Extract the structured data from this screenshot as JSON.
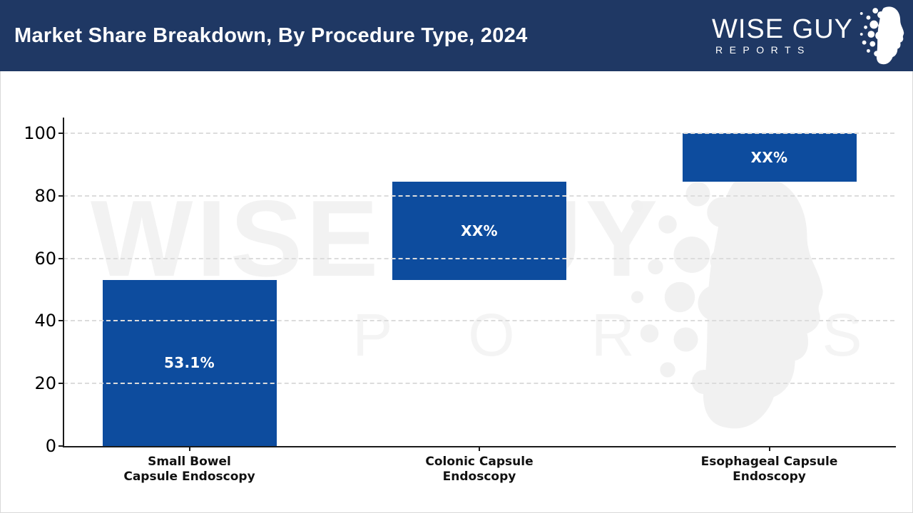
{
  "header": {
    "title": "Market Share Breakdown, By Procedure Type, 2024",
    "logo": {
      "line1": "WISE GUY",
      "line2": "REPORTS"
    }
  },
  "icons": {
    "logo_head": "wiseguy-head-icon",
    "watermark_head": "wiseguy-head-watermark-icon"
  },
  "watermark": {
    "line1": "WISE GUY",
    "line2": "R E P O R T S"
  },
  "colors": {
    "header_bg": "#1f3864",
    "bar_fill": "#0d4c9e",
    "bar_label": "#ffffff",
    "gridline": "#dcdcdc",
    "axis": "#1a1a1a",
    "watermark": "#f2f2f2"
  },
  "chart_data": {
    "type": "bar",
    "subtype": "floating-waterfall",
    "title": "Market Share Breakdown, By Procedure Type, 2024",
    "categories": [
      [
        "Small Bowel",
        "Capsule Endoscopy"
      ],
      [
        "Colonic Capsule",
        "Endoscopy"
      ],
      [
        "Esophageal Capsule",
        "Endoscopy"
      ]
    ],
    "segments": [
      {
        "category": "Small Bowel Capsule Endoscopy",
        "start": 0,
        "end": 53.1,
        "label": "53.1%"
      },
      {
        "category": "Colonic Capsule Endoscopy",
        "start": 53.1,
        "end": 84.4,
        "label": "XX%"
      },
      {
        "category": "Esophageal Capsule Endoscopy",
        "start": 84.4,
        "end": 100,
        "label": "XX%"
      }
    ],
    "yticks": [
      0,
      20,
      40,
      60,
      80,
      100
    ],
    "ylim": [
      0,
      105
    ],
    "xlabel": "",
    "ylabel": "",
    "grid": "horizontal-dashed-above-bars",
    "legend": "none"
  }
}
